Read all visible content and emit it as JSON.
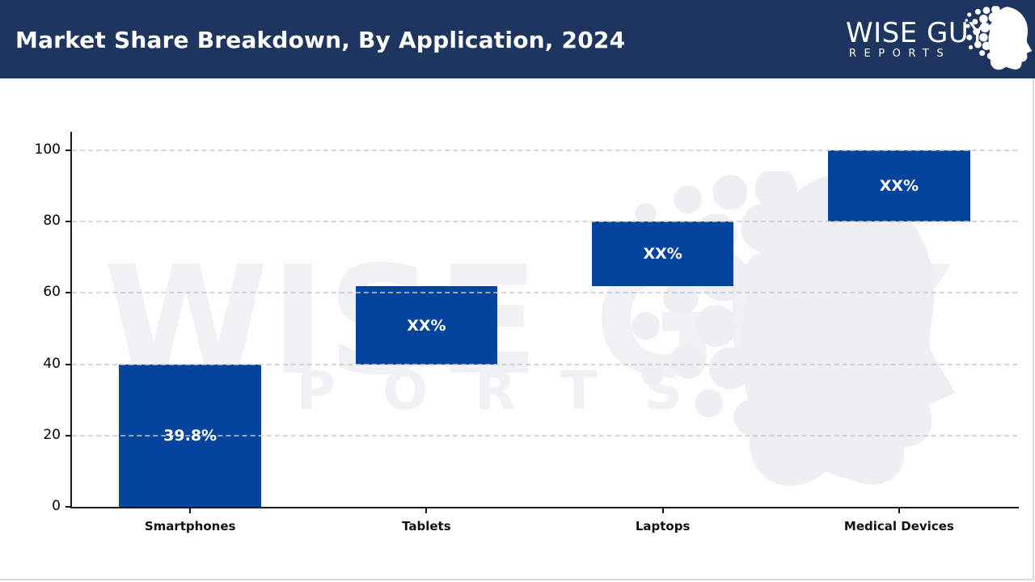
{
  "header": {
    "title": "Market Share Breakdown, By Application, 2024",
    "logo": {
      "line1": "WISE GUY",
      "line2": "REPORTS"
    }
  },
  "watermark": {
    "line1": "WISE GUY",
    "line2": "REPORTS"
  },
  "colors": {
    "header_bg": "#1e355f",
    "bar": "#05449c",
    "axis": "#1a1a1a",
    "grid": "#c9c9c9",
    "watermark": "#f0f1f4",
    "watermark_dots": "#edeff2",
    "frame": "#d8d8d8",
    "bar_label": "#ffffff"
  },
  "chart_data": {
    "type": "bar",
    "subtype": "waterfall",
    "title": "Market Share Breakdown, By Application, 2024",
    "categories": [
      "Smartphones",
      "Tablets",
      "Laptops",
      "Medical Devices"
    ],
    "segments": [
      {
        "category": "Smartphones",
        "start": 0,
        "end": 39.8,
        "value": 39.8,
        "label": "39.8%"
      },
      {
        "category": "Tablets",
        "start": 39.8,
        "end": 62,
        "value": 22.2,
        "label": "XX%"
      },
      {
        "category": "Laptops",
        "start": 62,
        "end": 80,
        "value": 18,
        "label": "XX%"
      },
      {
        "category": "Medical Devices",
        "start": 80,
        "end": 100,
        "value": 20,
        "label": "XX%"
      }
    ],
    "yticks": [
      0,
      20,
      40,
      60,
      80,
      100
    ],
    "ylim": [
      0,
      105.2
    ],
    "xlabel": "",
    "ylabel": "",
    "grid": "horizontal-dashed-over-bars",
    "legend": "none",
    "bar_color": "#05449c",
    "label_color": "#ffffff"
  }
}
